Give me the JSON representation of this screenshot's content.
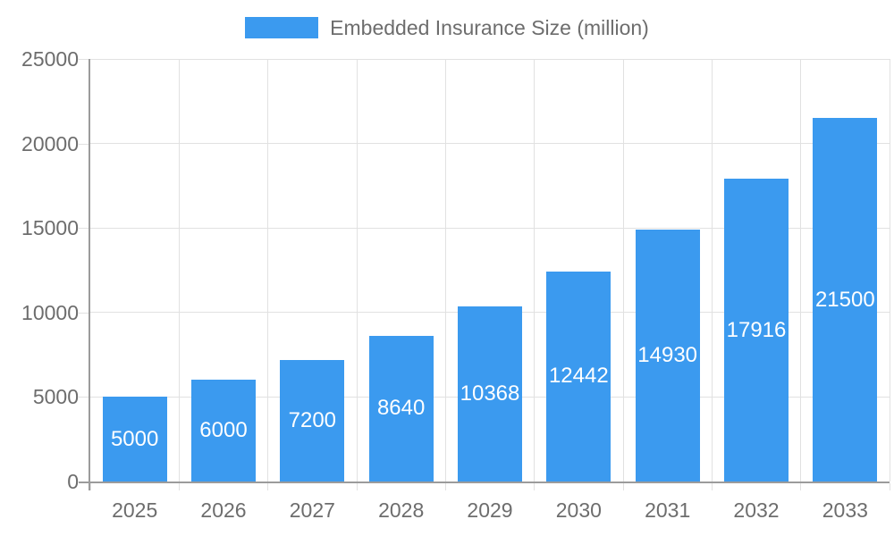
{
  "legend": {
    "label": "Embedded Insurance Size (million)"
  },
  "colors": {
    "bar": "#3b9aef",
    "grid": "#e1e1e1",
    "axis": "#9b9b9b",
    "tick_text": "#6d6d6d",
    "value_text": "#ffffff",
    "background": "#ffffff"
  },
  "chart_data": {
    "type": "bar",
    "title": "Embedded Insurance Size (million)",
    "categories": [
      "2025",
      "2026",
      "2027",
      "2028",
      "2029",
      "2030",
      "2031",
      "2032",
      "2033"
    ],
    "values": [
      5000,
      6000,
      7200,
      8640,
      10368,
      12442,
      14930,
      17916,
      21500
    ],
    "xlabel": "",
    "ylabel": "",
    "ylim": [
      0,
      25000
    ],
    "yticks": [
      0,
      5000,
      10000,
      15000,
      20000,
      25000
    ],
    "grid": true,
    "legend_position": "top",
    "value_labels": "inside-center"
  }
}
